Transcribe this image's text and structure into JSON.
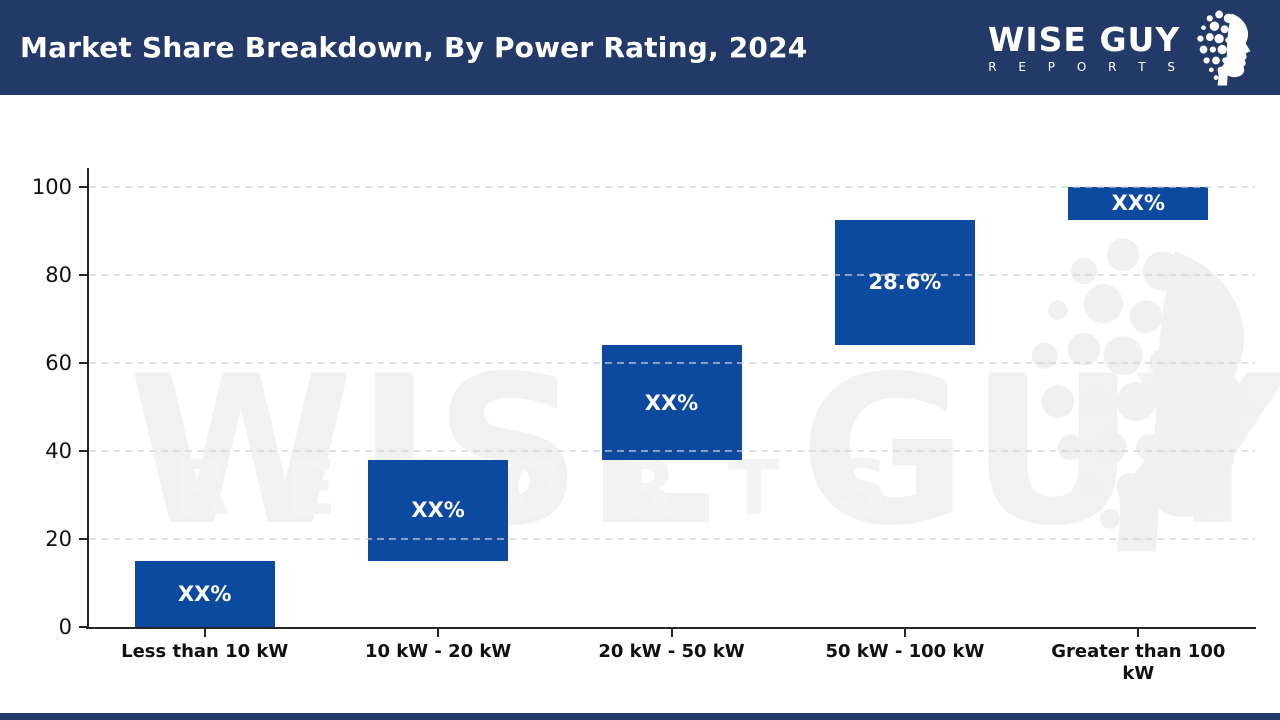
{
  "header": {
    "title": "Market Share Breakdown, By Power Rating, 2024",
    "logo_primary": "WISE GUY",
    "logo_secondary": "R E P O R T S"
  },
  "watermark": {
    "primary": "WISE GUY",
    "secondary": "REPORTS"
  },
  "colors": {
    "header_bg": "#233a69",
    "bar": "#0b4a9f",
    "bar_label": "#ffffff",
    "watermark": "#f1f1f1",
    "gridline": "#d9d9d9",
    "axis": "#262626"
  },
  "chart_data": {
    "type": "bar",
    "subtype": "waterfall",
    "title": "Market Share Breakdown, By Power Rating, 2024",
    "categories": [
      "Less than 10 kW",
      "10 kW - 20 kW",
      "20 kW - 50 kW",
      "50 kW - 100 kW",
      "Greater than 100 kW"
    ],
    "series": [
      {
        "name": "Market share (%)",
        "base": [
          0,
          15,
          38,
          64,
          92.6
        ],
        "top": [
          15,
          38,
          64,
          92.6,
          100
        ]
      }
    ],
    "bar_labels": [
      "XX%",
      "XX%",
      "XX%",
      "28.6%",
      "XX%"
    ],
    "yticks": [
      0,
      20,
      40,
      60,
      80,
      100
    ],
    "ylim": [
      0,
      104
    ],
    "xlabel": "",
    "ylabel": "",
    "grid": "horizontal-dashed",
    "legend": "none"
  }
}
